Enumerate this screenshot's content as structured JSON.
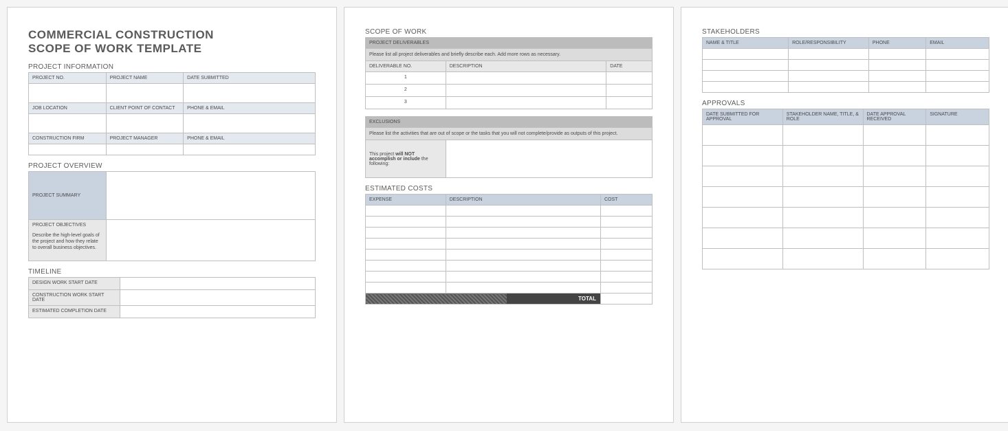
{
  "colors": {
    "page_bg": "#ffffff",
    "body_bg": "#f5f5f5",
    "border": "#bfbfbf",
    "header_blue": "#e4e9f0",
    "header_blue_strong": "#c9d3e0",
    "header_gray_dark": "#bcbcbc",
    "header_gray_med": "#dcdcdc",
    "header_gray_light": "#e8e8e8",
    "total_bg": "#444444",
    "text": "#5a5a5a"
  },
  "title_line1": "COMMERCIAL CONSTRUCTION",
  "title_line2": "SCOPE OF WORK TEMPLATE",
  "sections": {
    "project_information": "PROJECT INFORMATION",
    "project_overview": "PROJECT OVERVIEW",
    "timeline": "TIMELINE",
    "scope_of_work": "SCOPE OF WORK",
    "estimated_costs": "ESTIMATED COSTS",
    "stakeholders": "STAKEHOLDERS",
    "approvals": "APPROVALS"
  },
  "proj_info": {
    "project_no": "PROJECT NO.",
    "project_name": "PROJECT NAME",
    "date_submitted": "DATE SUBMITTED",
    "job_location": "JOB LOCATION",
    "client_poc": "CLIENT POINT OF CONTACT",
    "phone_email": "PHONE & EMAIL",
    "construction_firm": "CONSTRUCTION FIRM",
    "project_manager": "PROJECT MANAGER",
    "phone_email2": "PHONE & EMAIL"
  },
  "overview": {
    "summary": "PROJECT SUMMARY",
    "objectives": "PROJECT OBJECTIVES",
    "objectives_desc": "Describe the high-level goals of the project and how they relate to overall business objectives."
  },
  "timeline": {
    "design_start": "DESIGN WORK START DATE",
    "construction_start": "CONSTRUCTION WORK START DATE",
    "estimated_completion": "ESTIMATED COMPLETION DATE"
  },
  "scope": {
    "deliverables": "PROJECT DELIVERABLES",
    "deliverables_desc": "Please list all project deliverables and briefly describe each. Add more rows as necessary.",
    "col_no": "DELIVERABLE NO.",
    "col_desc": "DESCRIPTION",
    "col_date": "DATE",
    "rows": [
      "1",
      "2",
      "3"
    ],
    "exclusions": "EXCLUSIONS",
    "exclusions_desc": "Please list the activities that are out of scope or the tasks that you will not complete/provide as outputs of this project.",
    "exclusions_prompt1": "This project ",
    "exclusions_prompt2": "will NOT accomplish or include",
    "exclusions_prompt3": " the following:"
  },
  "costs": {
    "expense": "EXPENSE",
    "description": "DESCRIPTION",
    "cost": "COST",
    "total": "TOTAL",
    "empty_rows": 8
  },
  "stakeholders": {
    "name_title": "NAME & TITLE",
    "role": "ROLE/RESPONSIBILITY",
    "phone": "PHONE",
    "email": "EMAIL",
    "empty_rows": 4
  },
  "approvals": {
    "date_submitted": "DATE SUBMITTED FOR APPROVAL",
    "stakeholder": "STAKEHOLDER NAME, TITLE, & ROLE",
    "date_received": "DATE APPROVAL RECEIVED",
    "signature": "SIGNATURE",
    "empty_rows": 7
  }
}
